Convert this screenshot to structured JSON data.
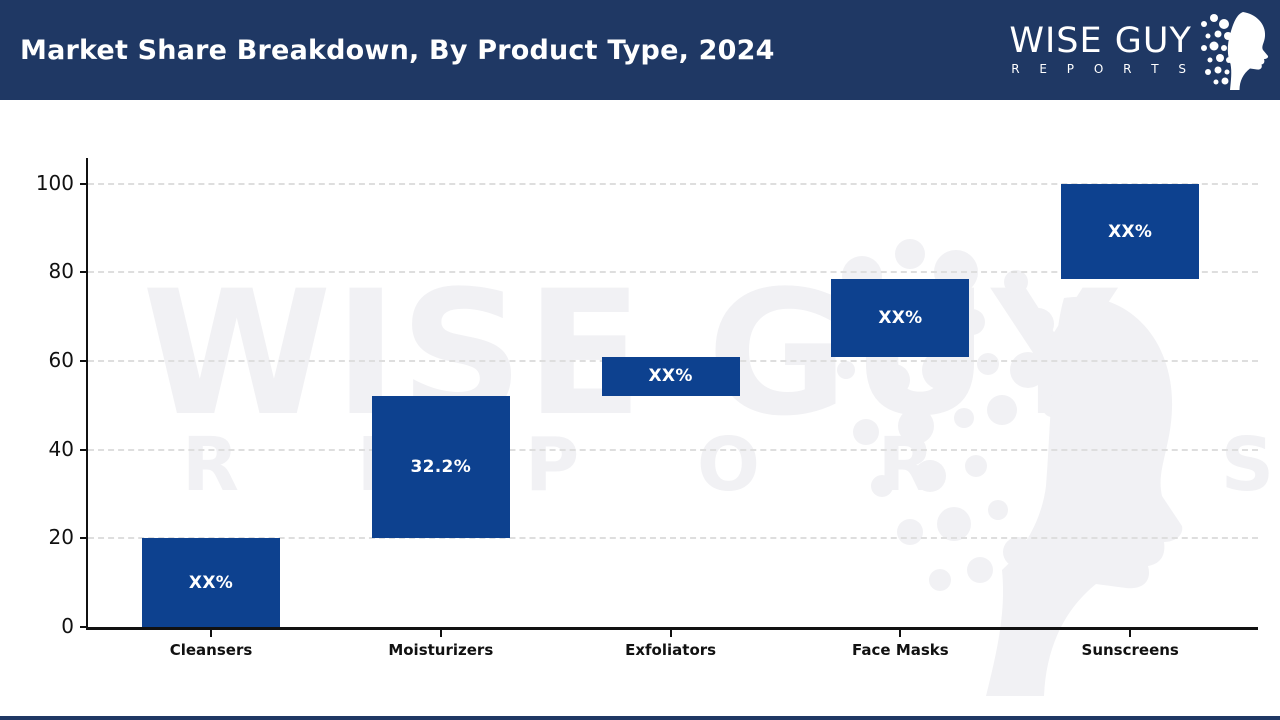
{
  "header": {
    "title": "Market Share Breakdown, By Product Type, 2024",
    "logo": {
      "line1": "WISE GUY",
      "line2": "R E P O R T S"
    }
  },
  "watermark": {
    "line1": "WISE GUY",
    "line2": "R E P O R T S"
  },
  "colors": {
    "header_bg": "#1f3864",
    "bar": "#0d418f",
    "grid": "#dedede",
    "bar_label": "#ffffff",
    "axis": "#111111",
    "watermark": "#f1f1f4"
  },
  "chart_data": {
    "type": "bar",
    "subtype": "waterfall",
    "title": "Market Share Breakdown, By Product Type, 2024",
    "categories": [
      "Cleansers",
      "Moisturizers",
      "Exfoliators",
      "Face Masks",
      "Sunscreens"
    ],
    "segments": [
      {
        "category": "Cleansers",
        "start": 0,
        "end": 20,
        "label": "XX%"
      },
      {
        "category": "Moisturizers",
        "start": 20,
        "end": 52.2,
        "label": "32.2%"
      },
      {
        "category": "Exfoliators",
        "start": 52.2,
        "end": 61,
        "label": "XX%"
      },
      {
        "category": "Face Masks",
        "start": 61,
        "end": 78.4,
        "label": "XX%"
      },
      {
        "category": "Sunscreens",
        "start": 78.4,
        "end": 100,
        "label": "XX%"
      }
    ],
    "y_ticks": [
      0,
      20,
      40,
      60,
      80,
      100
    ],
    "ylim": [
      0,
      105.8
    ],
    "xlabel": "",
    "ylabel": "",
    "grid": "horizontal-dashed",
    "legend": "none"
  }
}
